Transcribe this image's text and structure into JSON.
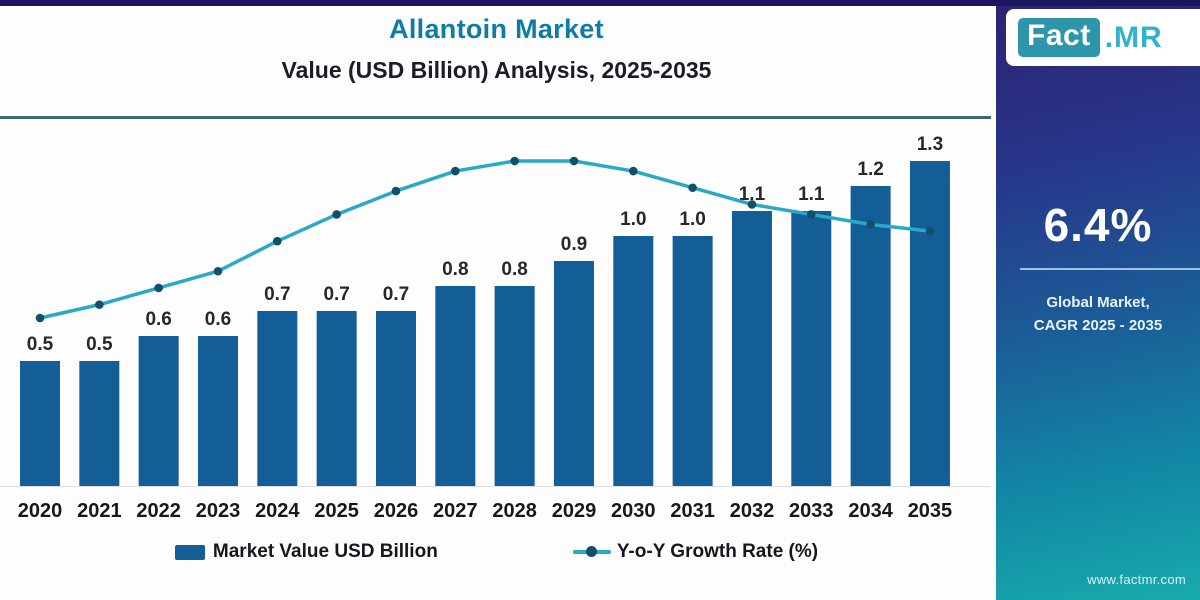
{
  "chart_data": {
    "type": "bar",
    "title": "Allantoin Market",
    "subtitle": "Value (USD Billion) Analysis, 2025-2035",
    "categories": [
      "2020",
      "2021",
      "2022",
      "2023",
      "2024",
      "2025",
      "2026",
      "2027",
      "2028",
      "2029",
      "2030",
      "2031",
      "2032",
      "2033",
      "2034",
      "2035"
    ],
    "series": [
      {
        "name": "Market Value USD Billion",
        "type": "bar",
        "color": "#135e96",
        "values": [
          0.5,
          0.5,
          0.6,
          0.6,
          0.7,
          0.7,
          0.7,
          0.8,
          0.8,
          0.9,
          1.0,
          1.0,
          1.1,
          1.1,
          1.2,
          1.3
        ]
      },
      {
        "name": "Y-o-Y Growth Rate (%)",
        "type": "line",
        "color": "#2aa9c7",
        "marker_color": "#11506a",
        "values_are_estimates": true,
        "values": [
          2.0,
          2.4,
          2.9,
          3.4,
          4.3,
          5.1,
          5.8,
          6.4,
          6.7,
          6.7,
          6.4,
          5.9,
          5.4,
          5.1,
          4.8,
          4.6
        ]
      }
    ],
    "bar_value_labels_shown": true,
    "line_value_labels_shown": false,
    "ylim": [
      0,
      1.45
    ],
    "grid": false,
    "legend_position": "bottom"
  },
  "legend": {
    "bar_label": "Market Value USD Billion",
    "line_label": "Y-o-Y Growth Rate (%)"
  },
  "sidebar": {
    "logo_fact": "Fact",
    "logo_mr": ".MR",
    "cagr_value": "6.4%",
    "caption_line1": "Global Market,",
    "caption_line2": "CAGR 2025 - 2035",
    "website": "www.factmr.com",
    "gradient_top_color": "#2d2274",
    "gradient_bottom_color": "#18abac"
  },
  "colors": {
    "title": "#0f7ca6",
    "bar": "#135e96",
    "line": "#2aa9c7",
    "line_marker": "#11506a",
    "top_strip": "#1a155e"
  }
}
